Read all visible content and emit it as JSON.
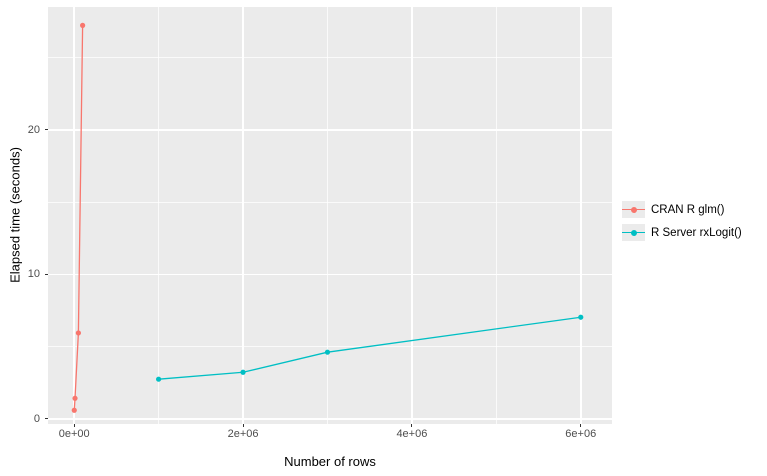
{
  "chart_data": {
    "type": "line",
    "title": "",
    "xlabel": "Number of rows",
    "ylabel": "Elapsed time (seconds)",
    "xlim": [
      -310000,
      6370000
    ],
    "ylim": [
      -0.35,
      28.51
    ],
    "grid": true,
    "legend_position": "right",
    "x_ticks": {
      "values": [
        0,
        2000000,
        4000000,
        6000000
      ],
      "labels": [
        "0e+00",
        "2e+06",
        "4e+06",
        "6e+06"
      ],
      "minor": [
        1000000,
        3000000,
        5000000
      ]
    },
    "y_ticks": {
      "values": [
        0,
        10,
        20
      ],
      "labels": [
        "0",
        "10",
        "20"
      ],
      "minor": [
        5,
        15,
        25
      ]
    },
    "series": [
      {
        "name": "CRAN R glm()",
        "color": "#F8766D",
        "x": [
          1000,
          10000,
          50000,
          100000
        ],
        "y": [
          0.6,
          1.43,
          5.95,
          27.24
        ]
      },
      {
        "name": "R Server rxLogit()",
        "color": "#00BFC4",
        "x": [
          1000000,
          2000000,
          3000000,
          6000000
        ],
        "y": [
          2.75,
          3.23,
          4.62,
          7.04
        ]
      }
    ]
  },
  "colors": {
    "panel_background": "#EBEBEB",
    "grid": "#FFFFFF",
    "tick_text": "#4D4D4D",
    "axis_text": "#000000",
    "legend_key_background": "#EBEBEB",
    "series_red": "#F8766D",
    "series_teal": "#00BFC4"
  }
}
